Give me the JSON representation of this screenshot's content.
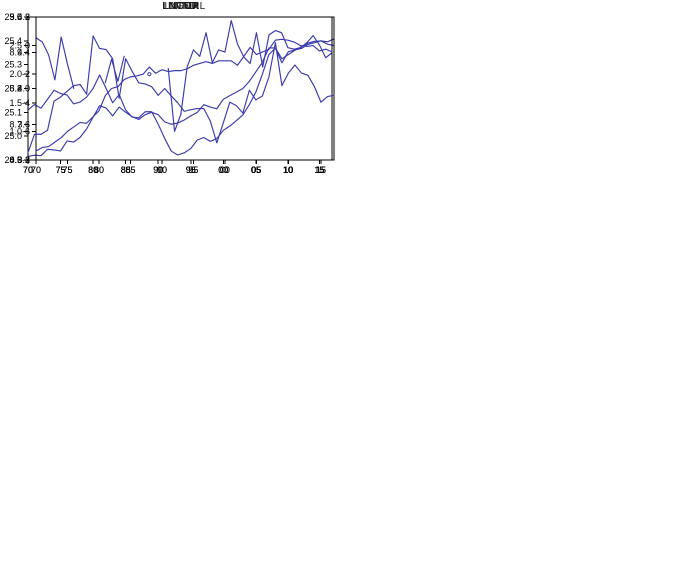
{
  "page": {
    "background": "#ffffff",
    "axis_color": "#000000",
    "line_color": "#3a3aad"
  },
  "chart_data": [
    {
      "type": "line",
      "title": "LNGDP",
      "x_start": 1970,
      "x_end": 2017,
      "x_tick_years": [
        1970,
        1975,
        1980,
        1985,
        1990,
        1995,
        2000,
        2005,
        2010,
        2015
      ],
      "x_tick_labels": [
        "70",
        "75",
        "80",
        "85",
        "90",
        "95",
        "00",
        "05",
        "10",
        "15"
      ],
      "ylim": [
        8.6,
        9.0
      ],
      "y_tick_values": [
        9.0,
        8.9,
        8.8,
        8.7,
        8.6
      ],
      "y_tick_labels": [
        "9.0",
        "8.9",
        "8.8",
        "8.7",
        "8.6"
      ],
      "grid": false,
      "legend": false,
      "line_color": "#3a3aad",
      "values": [
        8.74,
        8.755,
        8.745,
        8.77,
        8.795,
        8.786,
        8.782,
        8.757,
        8.762,
        8.776,
        8.8,
        8.838,
        8.8,
        8.76,
        8.783,
        8.74,
        8.72,
        8.718,
        8.735,
        8.735,
        8.7,
        8.66,
        8.625,
        8.614,
        8.62,
        8.632,
        8.656,
        8.663,
        8.652,
        8.66,
        8.683,
        8.695,
        8.71,
        8.726,
        8.755,
        8.79,
        8.84,
        8.895,
        8.913,
        8.883,
        8.895,
        8.907,
        8.917,
        8.927,
        8.932,
        8.933,
        8.924,
        8.92
      ]
    },
    {
      "type": "line",
      "title": "LNFDI",
      "x_start": 1970,
      "x_end": 2017,
      "x_tick_years": [
        1970,
        1975,
        1980,
        1985,
        1990,
        1995,
        2000,
        2005,
        2010,
        2015
      ],
      "x_tick_labels": [
        "70",
        "75",
        "80",
        "85",
        "90",
        "95",
        "00",
        "05",
        "10",
        "15"
      ],
      "ylim": [
        -8,
        2
      ],
      "y_tick_values": [
        2,
        0,
        -2,
        -4,
        -6,
        -8
      ],
      "y_tick_labels": [
        "2",
        "0",
        "-2",
        "-4",
        "-6",
        "-8"
      ],
      "grid": false,
      "legend": false,
      "line_color": "#3a3aad",
      "values": [
        0.55,
        0.25,
        -0.65,
        -2.4,
        0.6,
        -1.3,
        -3.0,
        null,
        null,
        null,
        null,
        -2.6,
        -0.95,
        -2.5,
        -0.75,
        null,
        null,
        null,
        -2.0,
        null,
        null,
        -1.6,
        -6.0,
        -4.8,
        -1.5,
        -0.3,
        -0.75,
        0.9,
        -1.2,
        -0.3,
        -0.45,
        1.75,
        0.1,
        -0.8,
        -1.25,
        0.9,
        -1.5,
        0.75,
        1.05,
        0.9,
        -0.15,
        -0.25,
        -0.15,
        0.2,
        0.7,
        0.05,
        -0.85,
        -0.5
      ]
    },
    {
      "type": "line",
      "title": "LNIND",
      "x_start": 1970,
      "x_end": 2017,
      "x_tick_years": [
        1970,
        1975,
        1980,
        1985,
        1990,
        1995,
        2000,
        2005,
        2010,
        2015
      ],
      "x_tick_labels": [
        "70",
        "75",
        "80",
        "85",
        "90",
        "95",
        "00",
        "05",
        "10",
        "15"
      ],
      "ylim": [
        24.9,
        25.5
      ],
      "y_tick_values": [
        25.5,
        25.4,
        25.3,
        25.2,
        25.1,
        25.0,
        24.9
      ],
      "y_tick_labels": [
        "25.5",
        "25.4",
        "25.3",
        "25.2",
        "25.1",
        "25.0",
        "24.9"
      ],
      "grid": false,
      "legend": false,
      "line_color": "#3a3aad",
      "values": [
        24.915,
        24.92,
        24.918,
        24.945,
        24.942,
        24.938,
        24.98,
        24.975,
        24.995,
        25.03,
        25.08,
        25.128,
        25.118,
        25.085,
        25.122,
        25.1,
        25.082,
        25.07,
        25.09,
        25.1,
        25.09,
        25.06,
        25.05,
        25.055,
        25.068,
        25.085,
        25.1,
        25.132,
        25.122,
        25.115,
        25.155,
        25.17,
        25.185,
        25.2,
        25.23,
        25.27,
        25.31,
        25.37,
        25.37,
        25.308,
        25.355,
        25.362,
        25.368,
        25.385,
        25.392,
        25.4,
        25.396,
        25.408
      ]
    },
    {
      "type": "line",
      "title": "LNCOAL",
      "x_start": 1970,
      "x_end": 2017,
      "x_tick_years": [
        1970,
        1975,
        1980,
        1985,
        1990,
        1995,
        2000,
        2005,
        2010,
        2015
      ],
      "x_tick_labels": [
        "70",
        "75",
        "80",
        "85",
        "90",
        "95",
        "00",
        "05",
        "10",
        "15"
      ],
      "ylim": [
        3.2,
        4.8
      ],
      "y_tick_values": [
        4.8,
        4.4,
        4.0,
        3.6,
        3.2
      ],
      "y_tick_labels": [
        "4.8",
        "4.4",
        "4.0",
        "3.6",
        "3.2"
      ],
      "grid": false,
      "legend": false,
      "line_color": "#3a3aad",
      "values": [
        3.3,
        3.34,
        3.35,
        3.4,
        3.45,
        3.52,
        3.57,
        3.62,
        3.61,
        3.68,
        3.75,
        3.92,
        4.0,
        4.02,
        4.1,
        4.13,
        4.14,
        4.16,
        4.24,
        4.17,
        4.21,
        4.19,
        4.2,
        4.2,
        4.22,
        4.26,
        4.28,
        4.3,
        4.28,
        4.31,
        4.31,
        4.31,
        4.26,
        4.36,
        4.46,
        4.38,
        4.41,
        4.44,
        4.54,
        4.55,
        4.54,
        4.52,
        4.48,
        4.47,
        4.48,
        4.42,
        4.44,
        4.41
      ]
    },
    {
      "type": "line",
      "title": "LNTNR",
      "x_start": 1970,
      "x_end": 2017,
      "x_tick_years": [
        1970,
        1975,
        1980,
        1985,
        1990,
        1995,
        2000,
        2005,
        2010,
        2015
      ],
      "x_tick_labels": [
        "70",
        "75",
        "80",
        "85",
        "90",
        "95",
        "00",
        "05",
        "10",
        "15"
      ],
      "ylim": [
        0.5,
        3.0
      ],
      "y_tick_values": [
        3.0,
        2.5,
        2.0,
        1.5,
        1.0,
        0.5
      ],
      "y_tick_labels": [
        "3.0",
        "2.5",
        "2.0",
        "1.5",
        "1.0",
        "0.5"
      ],
      "grid": false,
      "legend": false,
      "line_color": "#3a3aad",
      "values": [
        0.63,
        0.95,
        0.95,
        1.02,
        1.53,
        1.6,
        1.7,
        1.8,
        1.82,
        1.65,
        2.67,
        2.45,
        2.43,
        2.27,
        1.58,
        2.27,
        2.05,
        1.85,
        1.83,
        1.78,
        1.63,
        1.75,
        1.62,
        1.5,
        1.35,
        1.38,
        1.4,
        1.4,
        1.18,
        0.8,
        1.15,
        1.51,
        1.45,
        1.32,
        1.72,
        1.55,
        1.62,
        1.95,
        2.55,
        1.8,
        2.02,
        2.16,
        2.02,
        1.98,
        1.78,
        1.51,
        1.61,
        1.63
      ]
    }
  ]
}
